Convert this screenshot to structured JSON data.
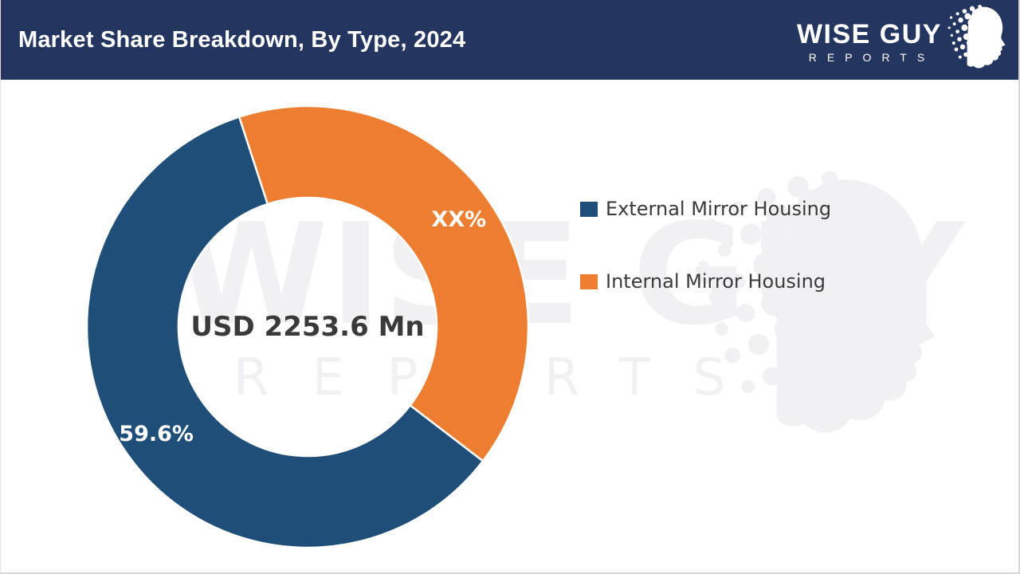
{
  "page": {
    "background": "#ffffff",
    "border_color": "#d6d6d6"
  },
  "header": {
    "title": "Market Share Breakdown, By Type, 2024",
    "background": "#24365f",
    "logo": {
      "line1": "WISE GUY",
      "line2": "REPORTS",
      "face_icon": "dotted-face-profile",
      "color": "#ffffff"
    }
  },
  "chart_data": {
    "type": "pie",
    "variant": "donut",
    "title": "Market Share Breakdown, By Type, 2024",
    "center_label": "USD 2253.6 Mn",
    "units": "percent",
    "start_angle_deg": 127.4,
    "inner_radius_ratio": 0.585,
    "legend_position": "right",
    "slices": [
      {
        "label": "External Mirror Housing",
        "value": 59.6,
        "value_label": "59.6%",
        "color": "#1F4E79"
      },
      {
        "label": "Internal Mirror Housing",
        "value": 40.4,
        "value_label": "XX%",
        "color": "#ED7D31"
      }
    ]
  },
  "watermark": {
    "line1": "WISE GUY",
    "line2": "REPORTS",
    "face_icon": "dotted-face-profile",
    "color": "#f1f1f3"
  }
}
